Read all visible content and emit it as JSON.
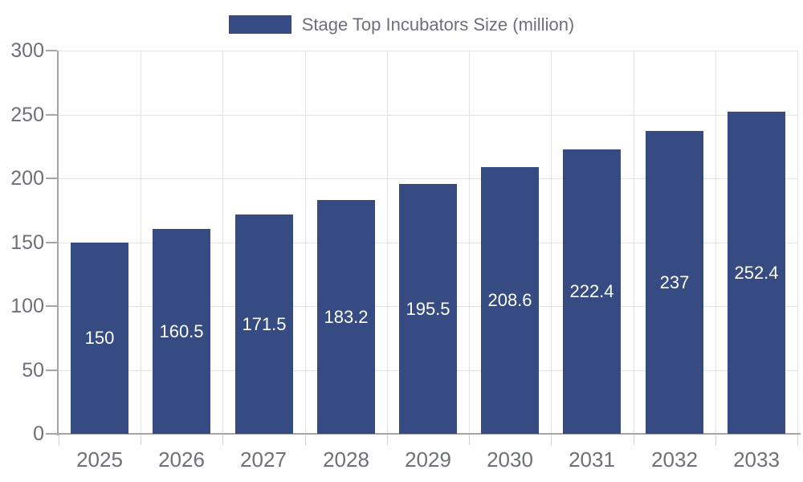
{
  "legend": {
    "label": "Stage Top Incubators Size (million)"
  },
  "chart_data": {
    "type": "bar",
    "title": "Stage Top Incubators Size (million)",
    "series_name": "Stage Top Incubators Size (million)",
    "categories": [
      "2025",
      "2026",
      "2027",
      "2028",
      "2029",
      "2030",
      "2031",
      "2032",
      "2033"
    ],
    "values": [
      150,
      160.5,
      171.5,
      183.2,
      195.5,
      208.6,
      222.4,
      237,
      252.4
    ],
    "value_labels": [
      "150",
      "160.5",
      "171.5",
      "183.2",
      "195.5",
      "208.6",
      "222.4",
      "237",
      "252.4"
    ],
    "xlabel": "",
    "ylabel": "",
    "ylim": [
      0,
      300
    ],
    "yticks": [
      0,
      50,
      100,
      150,
      200,
      250,
      300
    ],
    "grid": true,
    "legend_position": "top-center",
    "value_label_position": "inside-center",
    "colors": {
      "bar": "#354b81",
      "value_label": "#ffffff",
      "axis_text": "#6e7079",
      "axis_line": "#a6a6a6",
      "grid_line": "#e3e3e5",
      "tick_x": "#d2d2d4",
      "tick_y": "#a6a6a6",
      "background": "#ffffff"
    }
  }
}
